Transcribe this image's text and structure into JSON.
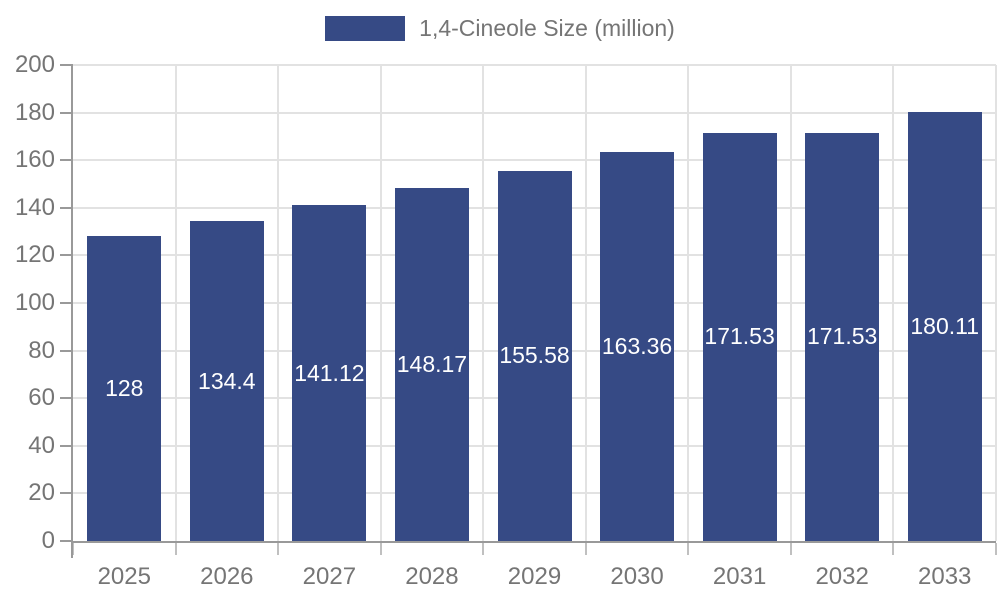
{
  "chart_data": {
    "type": "bar",
    "legend": "1,4-Cineole Size (million)",
    "legend_position": "top-center",
    "categories": [
      "2025",
      "2026",
      "2027",
      "2028",
      "2029",
      "2030",
      "2031",
      "2032",
      "2033"
    ],
    "series": [
      {
        "name": "1,4-Cineole Size (million)",
        "values": [
          128,
          134.4,
          141.12,
          148.17,
          155.58,
          163.36,
          171.53,
          171.53,
          180.11
        ],
        "value_labels": [
          "128",
          "134.4",
          "141.12",
          "148.17",
          "155.58",
          "163.36",
          "171.53",
          "171.53",
          "180.11"
        ]
      }
    ],
    "xlabel": "",
    "ylabel": "",
    "ylim": [
      0,
      200
    ],
    "y_ticks": [
      0,
      20,
      40,
      60,
      80,
      100,
      120,
      140,
      160,
      180,
      200
    ],
    "grid": true,
    "colors": {
      "bar": "#364A85",
      "axis": "#999999",
      "grid": "#E2E2E2",
      "x_tick_mark": "#C0C0C0",
      "tick_label": "#757575",
      "legend_text": "#757575",
      "value_label": "#FFFFFF",
      "background": "#FFFFFF"
    }
  }
}
